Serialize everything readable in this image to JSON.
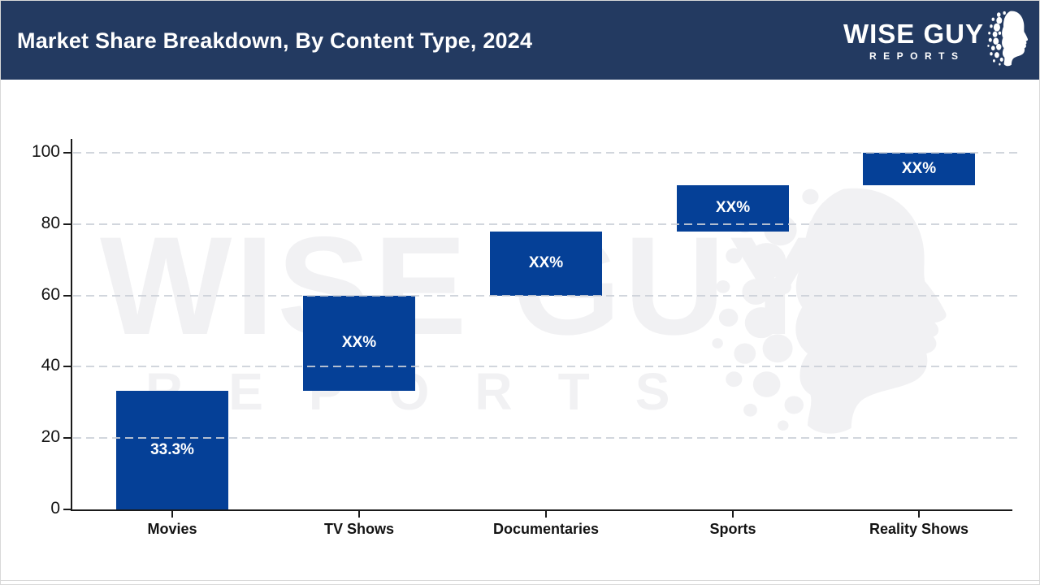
{
  "header": {
    "title": "Market Share Breakdown, By Content Type, 2024",
    "logo": {
      "line1": "WISE GUY",
      "line2": "REPORTS"
    }
  },
  "watermark": {
    "line1": "WISE GUY",
    "line2": "REPORTS"
  },
  "colors": {
    "header_bg": "#233A61",
    "bar": "#054097",
    "bar_label_text": "#FFFFFF",
    "gridline": "#D8D8D8",
    "axis": "#1A1A1A",
    "watermark": "#F1F1F3"
  },
  "chart_data": {
    "type": "bar",
    "variant": "waterfall",
    "title": "Market Share Breakdown, By Content Type, 2024",
    "xlabel": "",
    "ylabel": "",
    "categories": [
      "Movies",
      "TV Shows",
      "Documentaries",
      "Sports",
      "Reality Shows"
    ],
    "bar_labels": [
      "33.3%",
      "XX%",
      "XX%",
      "XX%",
      "XX%"
    ],
    "segments": [
      {
        "category": "Movies",
        "start": 0,
        "end": 33.3,
        "label": "33.3%"
      },
      {
        "category": "TV Shows",
        "start": 33.3,
        "end": 60,
        "label": "XX%"
      },
      {
        "category": "Documentaries",
        "start": 60,
        "end": 78,
        "label": "XX%"
      },
      {
        "category": "Sports",
        "start": 78,
        "end": 91,
        "label": "XX%"
      },
      {
        "category": "Reality Shows",
        "start": 91,
        "end": 100,
        "label": "XX%"
      }
    ],
    "yticks": [
      0,
      20,
      40,
      60,
      80,
      100
    ],
    "ylim": [
      0,
      104
    ],
    "grid": "horizontal dashed",
    "legend": "none"
  }
}
